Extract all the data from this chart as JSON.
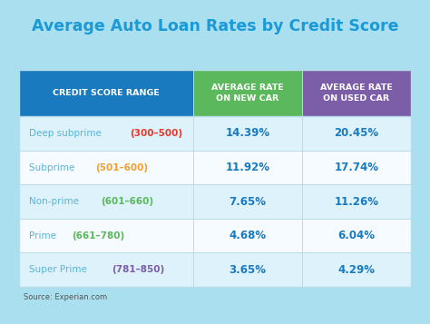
{
  "title": "Average Auto Loan Rates by Credit Score",
  "background_color": "#aadff0",
  "header_col1_bg": "#1a7abf",
  "header_col2_bg": "#5cb85c",
  "header_col3_bg": "#7b5ea7",
  "header_text_color": "#ffffff",
  "col1_header": "CREDIT SCORE RANGE",
  "col2_header": "AVERAGE RATE\nON NEW CAR",
  "col3_header": "AVERAGE RATE\nON USED CAR",
  "rows": [
    {
      "label_text": "Deep subprime",
      "label_range": "(300–500)",
      "new_car": "14.39%",
      "used_car": "20.45%",
      "label_color": "#e8372a",
      "bg": "#ddf2fb"
    },
    {
      "label_text": "Subprime",
      "label_range": "(501–600)",
      "new_car": "11.92%",
      "used_car": "17.74%",
      "label_color": "#f0a030",
      "bg": "#f5fbff"
    },
    {
      "label_text": "Non-prime",
      "label_range": "(601–660)",
      "new_car": "7.65%",
      "used_car": "11.26%",
      "label_color": "#5cb85c",
      "bg": "#ddf2fb"
    },
    {
      "label_text": "Prime",
      "label_range": "(661–780)",
      "new_car": "4.68%",
      "used_car": "6.04%",
      "label_color": "#5cb85c",
      "bg": "#f5fbff"
    },
    {
      "label_text": "Super Prime",
      "label_range": "(781–850)",
      "new_car": "3.65%",
      "used_car": "4.29%",
      "label_color": "#7b5ea7",
      "bg": "#ddf2fb"
    }
  ],
  "data_text_color": "#1a7abf",
  "label_base_color": "#5ab4d6",
  "source_text": "Source: Experian.com",
  "row_divider_color": "#b8dce8",
  "table_border_color": "#b8dce8",
  "title_color": "#1a9ad7",
  "figwidth": 4.74,
  "figheight": 3.57,
  "dpi": 100
}
